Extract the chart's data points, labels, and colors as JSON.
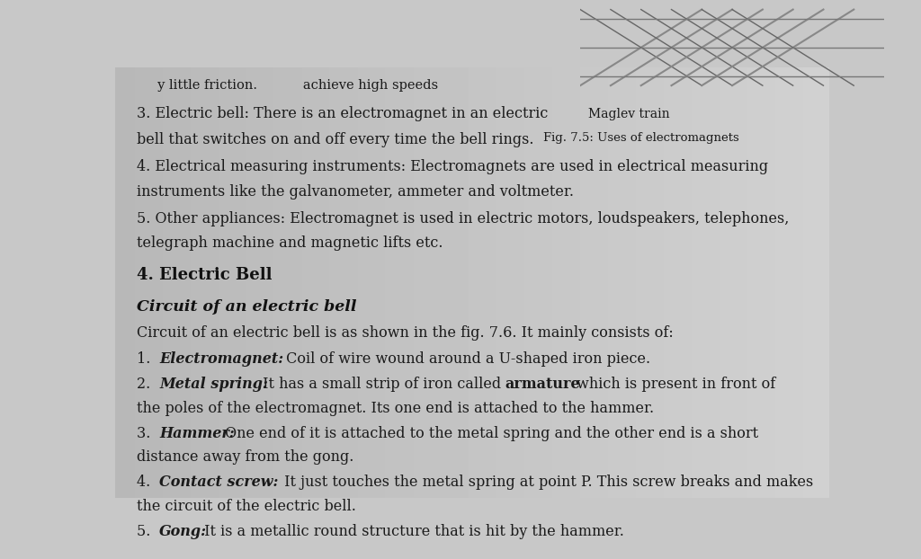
{
  "background_color": "#c8c8c8",
  "text_color": "#1a1a1a",
  "section_color": "#111111",
  "font_size_body": 11.5,
  "font_size_section": 13.0,
  "font_size_subtitle": 12.5,
  "font_size_caption": 9.5,
  "font_size_top": 10.5,
  "title_section": "4. Electric Bell",
  "subtitle": "Circuit of an electric bell",
  "intro_line": "Circuit of an electric bell is as shown in the fig. 7.6. It mainly consists of:",
  "fig_caption_line1": "Maglev train",
  "fig_caption_line2": "Fig. 7.5: Uses of electromagnets",
  "top_cut1": "     y little friction.           achieve high speeds",
  "line3a": "3. Electric bell: There is an electromagnet in an electric",
  "line3b": "bell that switches on and off every time the bell rings.",
  "line4a": "4. Electrical measuring instruments: Electromagnets are used in electrical measuring",
  "line4b": "instruments like the galvanometer, ammeter and voltmeter.",
  "line5a": "5. Other appliances: Electromagnet is used in electric motors, loudspeakers, telephones,",
  "line5b": "telegraph machine and magnetic lifts etc."
}
